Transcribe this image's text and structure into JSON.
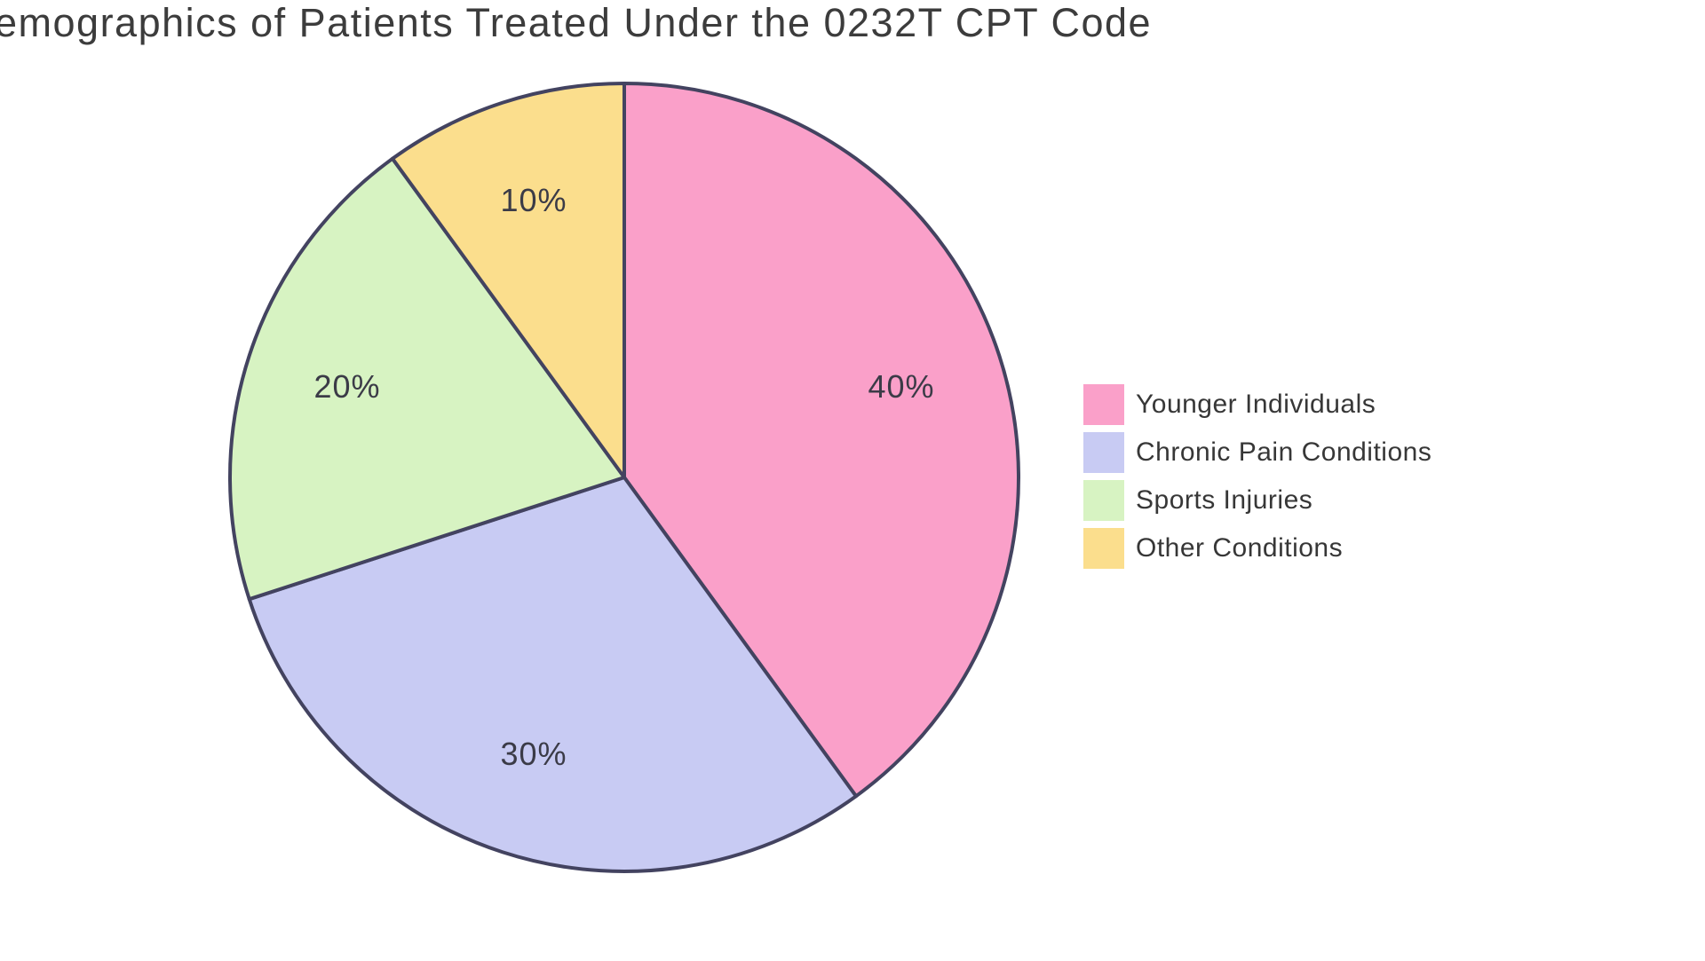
{
  "chart_data": {
    "type": "pie",
    "title": "emographics of Patients Treated Under the 0232T CPT Code",
    "categories": [
      "Younger Individuals",
      "Chronic Pain Conditions",
      "Sports Injuries",
      "Other Conditions"
    ],
    "values": [
      40,
      30,
      20,
      10
    ],
    "labels": [
      "40%",
      "30%",
      "20%",
      "10%"
    ],
    "colors": [
      "#FAA0C9",
      "#C8CBF3",
      "#D7F3C2",
      "#FBDE8D"
    ],
    "slice_border_color": "#434360",
    "label_color": "#3b3b47",
    "title_color": "#3c3c3c",
    "background_color": "#ffffff",
    "start_angle_deg": 0,
    "direction": "clockwise",
    "labels_inside": true,
    "legend_position": "right"
  },
  "legend": {
    "items": [
      {
        "label": "Younger Individuals",
        "color": "#FAA0C9"
      },
      {
        "label": "Chronic Pain Conditions",
        "color": "#C8CBF3"
      },
      {
        "label": "Sports Injuries",
        "color": "#D7F3C2"
      },
      {
        "label": "Other Conditions",
        "color": "#FBDE8D"
      }
    ]
  }
}
